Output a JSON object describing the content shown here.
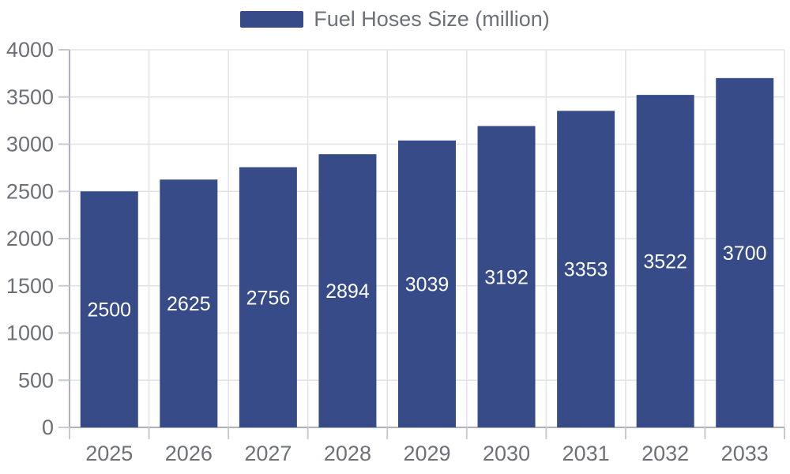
{
  "chart_data": {
    "type": "bar",
    "title": "Fuel Hoses Size (million)",
    "series": [
      {
        "name": "Fuel Hoses Size (million)",
        "values": [
          2500,
          2625,
          2756,
          2894,
          3039,
          3192,
          3353,
          3522,
          3700
        ]
      }
    ],
    "categories": [
      "2025",
      "2026",
      "2027",
      "2028",
      "2029",
      "2030",
      "2031",
      "2032",
      "2033"
    ],
    "xlabel": "",
    "ylabel": "",
    "ylim": [
      0,
      4000
    ],
    "ytick_step": 500,
    "ytick_labels": [
      "0",
      "500",
      "1000",
      "1500",
      "2000",
      "2500",
      "3000",
      "3500",
      "4000"
    ],
    "grid": true,
    "legend_position": "top-center",
    "value_label_position": "inside-center",
    "colors": {
      "bar": "#364B87",
      "value_label": "#FFFFFF",
      "axis_text": "#6E7079",
      "legend_text": "#6E7079",
      "grid_line": "#E1E3E8",
      "axis_line": "#AEB1B9",
      "tick_line": "#C7CAD1",
      "background": "#FFFFFF"
    }
  }
}
